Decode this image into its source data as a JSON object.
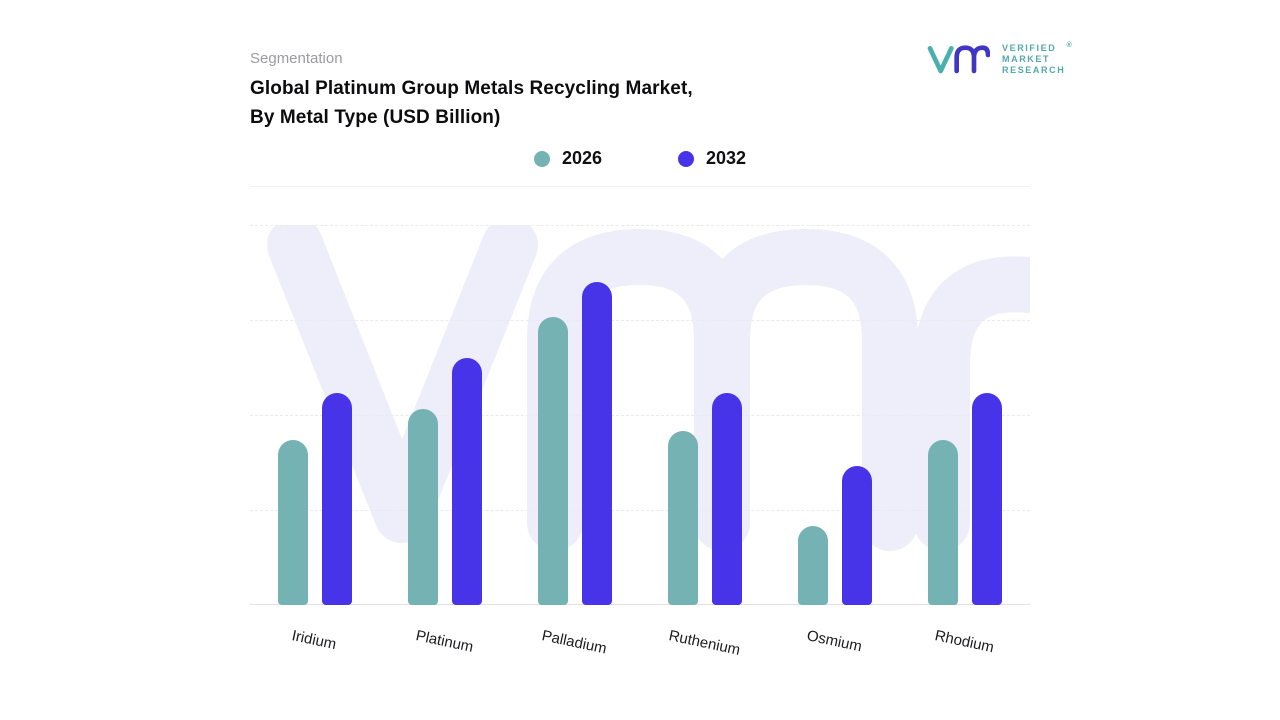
{
  "header": {
    "eyebrow": "Segmentation",
    "title_line1": "Global Platinum Group Metals Recycling Market,",
    "title_line2": "By Metal Type (USD Billion)"
  },
  "logo": {
    "line1": "VERIFIED",
    "line2": "MARKET",
    "line3": "RESEARCH",
    "registered": "®",
    "text_color": "#52a9a7",
    "mark_teal": "#49b0ad",
    "mark_indigo": "#4036c6"
  },
  "legend": {
    "items": [
      {
        "label": "2026",
        "color": "#74b2b4"
      },
      {
        "label": "2032",
        "color": "#4734e8"
      }
    ]
  },
  "chart_data": {
    "type": "bar",
    "title": "Global Platinum Group Metals Recycling Market, By Metal Type (USD Billion)",
    "categories": [
      "Iridium",
      "Platinum",
      "Palladium",
      "Ruthenium",
      "Osmium",
      "Rhodium"
    ],
    "series": [
      {
        "name": "2026",
        "color": "#74b2b4",
        "values": [
          5.2,
          6.2,
          9.1,
          5.5,
          2.5,
          5.2
        ]
      },
      {
        "name": "2032",
        "color": "#4734e8",
        "values": [
          6.7,
          7.8,
          10.2,
          6.7,
          4.4,
          6.7
        ]
      }
    ],
    "xlabel": "",
    "ylabel": "",
    "ylim": [
      0,
      12
    ],
    "grid": "horizontal-dashed",
    "legend_position": "top-center",
    "watermark": "vmr",
    "watermark_color": "#edeef9"
  }
}
